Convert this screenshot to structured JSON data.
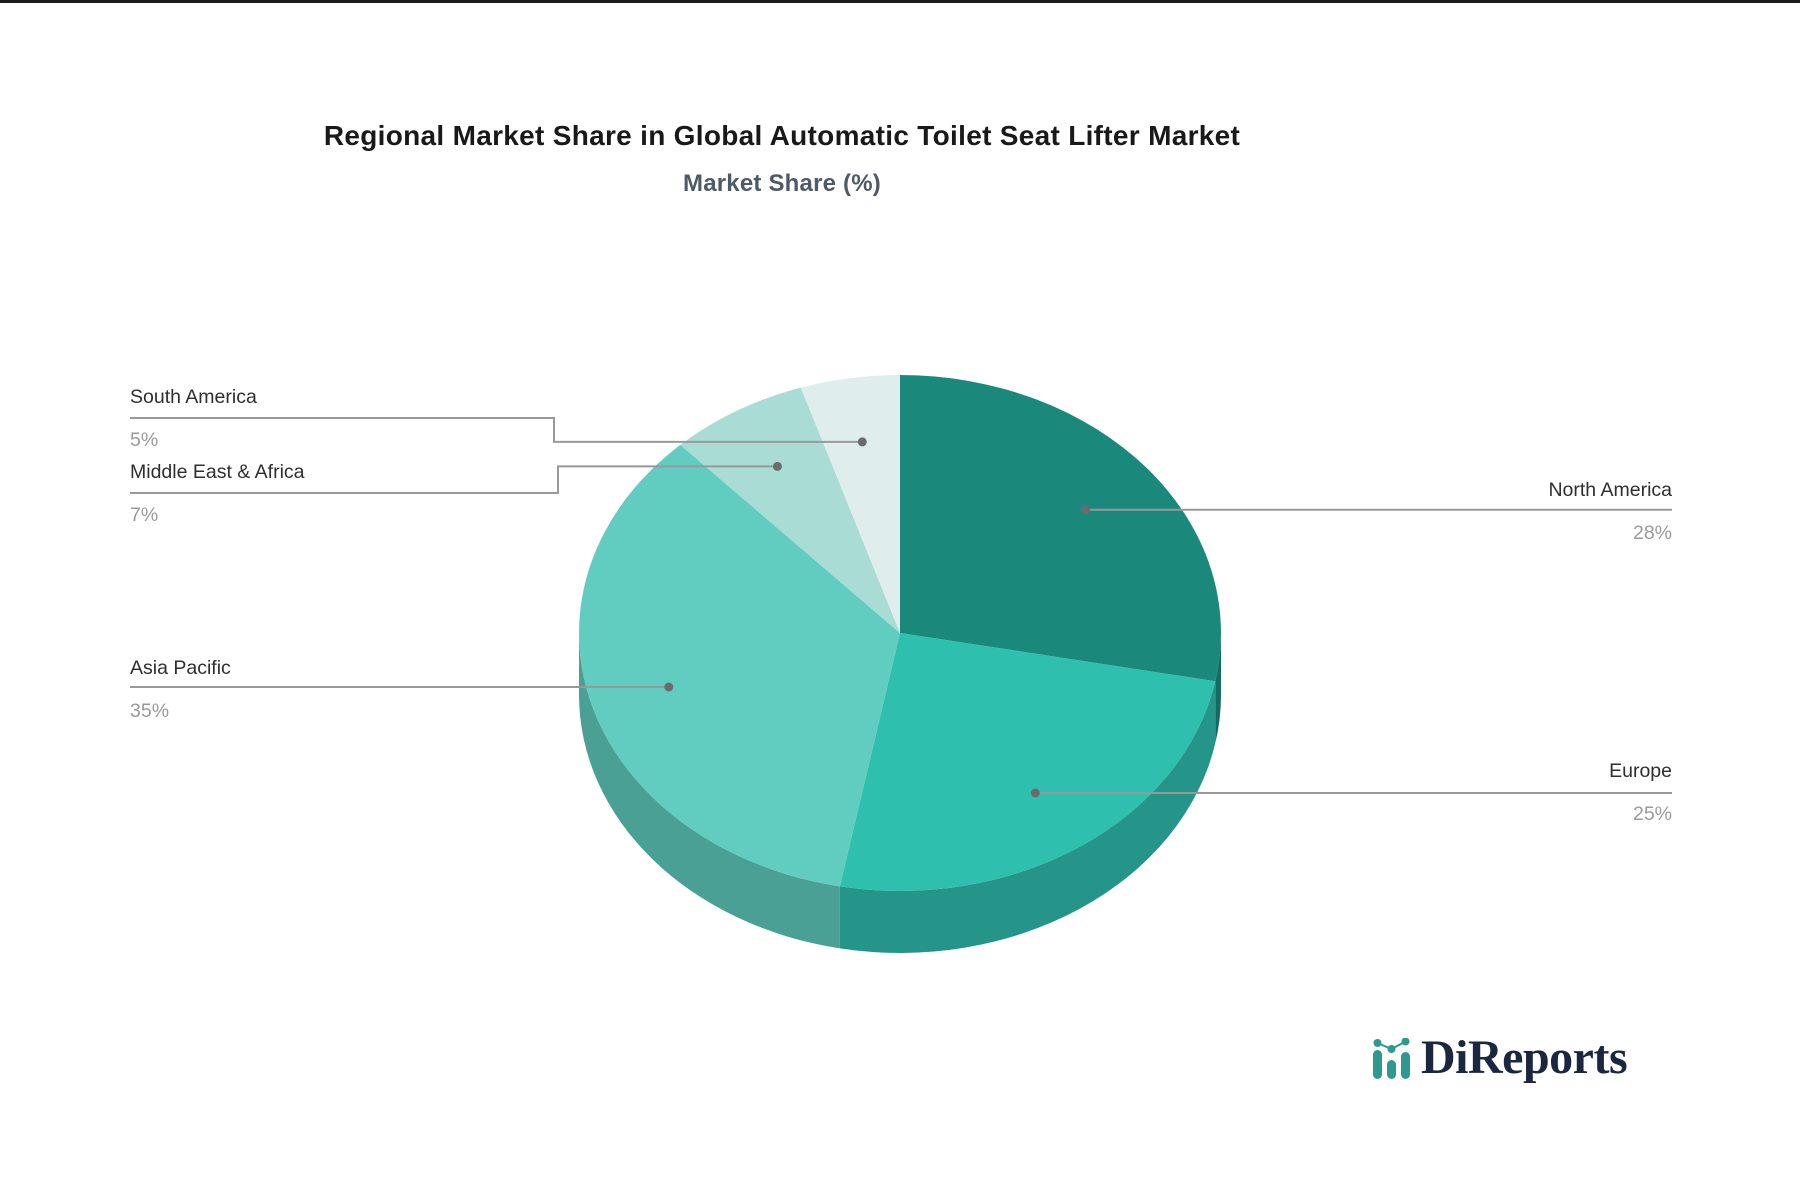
{
  "header": {
    "title": "Regional Market Share in Global Automatic Toilet Seat Lifter Market",
    "subtitle": "Market Share (%)"
  },
  "chart_data": {
    "type": "pie",
    "title": "Regional Market Share in Global Automatic Toilet Seat Lifter Market",
    "subtitle": "Market Share (%)",
    "unit": "%",
    "direction": "clockwise",
    "start_angle": "12-o-clock",
    "effect": "3d",
    "legend_position": "callout-labels",
    "slices": [
      {
        "label": "North America",
        "value": 28,
        "display": "28%",
        "color": "#1a897c"
      },
      {
        "label": "Europe",
        "value": 25,
        "display": "25%",
        "color": "#2fbfaf"
      },
      {
        "label": "Asia Pacific",
        "value": 35,
        "display": "35%",
        "color": "#60cdc0"
      },
      {
        "label": "Middle East & Africa",
        "value": 7,
        "display": "7%",
        "color": "#a9dcd4"
      },
      {
        "label": "South America",
        "value": 5,
        "display": "5%",
        "color": "#dfeeec"
      }
    ],
    "label_name_color": "#2e2e2e",
    "label_value_color": "#9a9a9a",
    "line_color": "#999999",
    "dot_color": "#6b6b6b"
  },
  "branding": {
    "logo_text": "DiReports",
    "logo_text_color": "#1b2740",
    "icon_name": "bar-chart-logo-icon",
    "icon_color": "#2e9a8f"
  }
}
